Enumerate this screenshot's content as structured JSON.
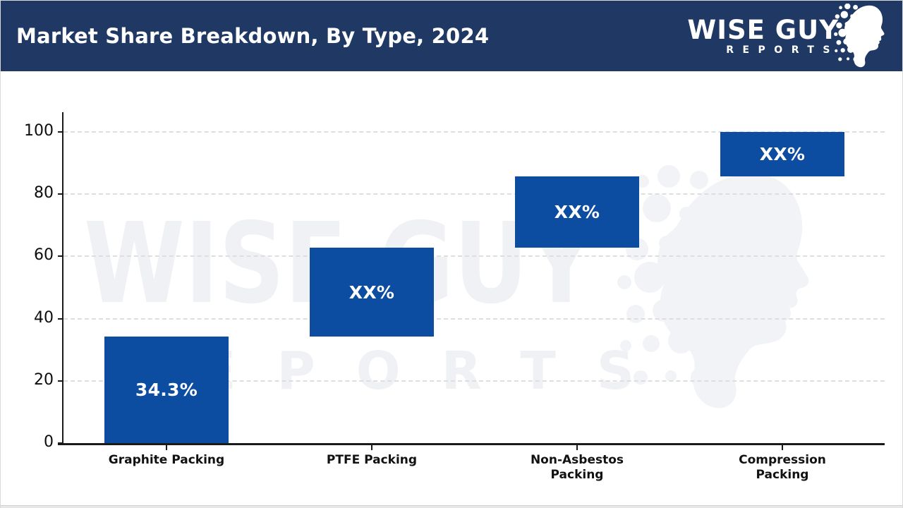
{
  "header": {
    "title": "Market Share Breakdown, By Type, 2024",
    "bg_color": "#1f3864",
    "logo_line1": "WISE GUY",
    "logo_line2": "REPORTS"
  },
  "watermark": {
    "line1": "WISE GUY",
    "line2": "REPORTS"
  },
  "colors": {
    "bar": "#0c4da2",
    "header_navy": "#1f3864",
    "gridline": "#dedede",
    "watermark": "#f0f1f4"
  },
  "chart_data": {
    "type": "bar",
    "style": "floating-waterfall",
    "title": "Market Share Breakdown, By Type, 2024",
    "categories": [
      "Graphite Packing",
      "PTFE Packing",
      "Non-Asbestos\nPacking",
      "Compression\nPacking"
    ],
    "bars": [
      {
        "category": "Graphite Packing",
        "start": 0,
        "end": 34.3,
        "label": "34.3%"
      },
      {
        "category": "PTFE Packing",
        "start": 34.3,
        "end": 62.8,
        "label": "XX%"
      },
      {
        "category": "Non-Asbestos Packing",
        "start": 62.8,
        "end": 85.7,
        "label": "XX%"
      },
      {
        "category": "Compression Packing",
        "start": 85.7,
        "end": 100,
        "label": "XX%"
      }
    ],
    "xlabel": "",
    "ylabel": "",
    "ylim": [
      0,
      100
    ],
    "yticks": [
      0,
      20,
      40,
      60,
      80,
      100
    ],
    "grid": "horizontal-dashed",
    "legend": "none",
    "bar_color": "#0c4da2",
    "bar_label_color": "#ffffff"
  }
}
